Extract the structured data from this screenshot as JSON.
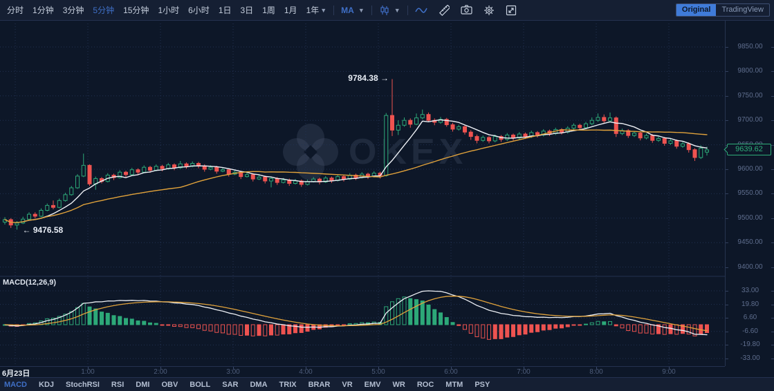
{
  "toolbar": {
    "timeframes": [
      "分时",
      "1分钟",
      "3分钟",
      "5分钟",
      "15分钟",
      "1小时",
      "6小时",
      "1日",
      "3日",
      "1周",
      "1月",
      "1年"
    ],
    "selected_timeframe": "5分钟",
    "ma_label": "MA",
    "icons": [
      "candlestick-icon",
      "line-chart-icon",
      "measure-icon",
      "camera-icon",
      "settings-icon",
      "fullscreen-icon"
    ],
    "view_toggle": {
      "options": [
        "Original",
        "TradingView"
      ],
      "selected": "Original"
    }
  },
  "chart_data": {
    "type": "candlestick",
    "interval": "5分钟",
    "watermark": "OKEX",
    "last_price": "9639.62",
    "annotations": {
      "high_label": "9784.38 →",
      "low_label": "← 9476.58",
      "high_value": 9784.38,
      "low_value": 9476.58
    },
    "price_axis_ticks": [
      "9850.00",
      "9800.00",
      "9750.00",
      "9700.00",
      "9650.00",
      "9600.00",
      "9550.00",
      "9500.00",
      "9450.00",
      "9400.00"
    ],
    "macd": {
      "label": "MACD(12,26,9)",
      "params": [
        12,
        26,
        9
      ],
      "axis_ticks": [
        "33.00",
        "19.80",
        "6.60",
        "-6.60",
        "-19.80",
        "-33.00"
      ]
    },
    "time_axis": {
      "date_label": "6月23日",
      "hour_ticks": [
        "1:00",
        "2:00",
        "3:00",
        "4:00",
        "5:00",
        "6:00",
        "7:00",
        "8:00",
        "9:00"
      ]
    },
    "candles": [
      [
        9492,
        9502,
        9487,
        9497
      ],
      [
        9497,
        9500,
        9480,
        9486
      ],
      [
        9486,
        9494,
        9476.58,
        9490
      ],
      [
        9490,
        9503,
        9488,
        9498
      ],
      [
        9498,
        9512,
        9496,
        9508
      ],
      [
        9508,
        9512,
        9499,
        9504
      ],
      [
        9504,
        9520,
        9502,
        9516
      ],
      [
        9516,
        9530,
        9514,
        9526
      ],
      [
        9526,
        9536,
        9518,
        9522
      ],
      [
        9522,
        9540,
        9520,
        9536
      ],
      [
        9536,
        9552,
        9534,
        9548
      ],
      [
        9548,
        9566,
        9546,
        9562
      ],
      [
        9562,
        9590,
        9560,
        9586
      ],
      [
        9586,
        9632,
        9584,
        9608
      ],
      [
        9608,
        9610,
        9566,
        9570
      ],
      [
        9570,
        9585,
        9558,
        9581
      ],
      [
        9581,
        9584,
        9571,
        9575
      ],
      [
        9575,
        9592,
        9573,
        9588
      ],
      [
        9588,
        9591,
        9578,
        9583
      ],
      [
        9583,
        9598,
        9581,
        9594
      ],
      [
        9594,
        9597,
        9584,
        9589
      ],
      [
        9589,
        9603,
        9587,
        9599
      ],
      [
        9599,
        9602,
        9589,
        9594
      ],
      [
        9594,
        9608,
        9592,
        9604
      ],
      [
        9604,
        9607,
        9593,
        9598
      ],
      [
        9598,
        9610,
        9596,
        9606
      ],
      [
        9606,
        9609,
        9596,
        9601
      ],
      [
        9601,
        9613,
        9599,
        9609
      ],
      [
        9609,
        9612,
        9598,
        9603
      ],
      [
        9603,
        9617,
        9601,
        9611
      ],
      [
        9611,
        9614,
        9601,
        9606
      ],
      [
        9606,
        9616,
        9604,
        9612
      ],
      [
        9612,
        9615,
        9602,
        9607
      ],
      [
        9607,
        9610,
        9595,
        9600
      ],
      [
        9600,
        9608,
        9598,
        9604
      ],
      [
        9604,
        9607,
        9591,
        9596
      ],
      [
        9596,
        9603,
        9594,
        9599
      ],
      [
        9599,
        9602,
        9585,
        9590
      ],
      [
        9590,
        9598,
        9588,
        9594
      ],
      [
        9594,
        9597,
        9580,
        9585
      ],
      [
        9585,
        9593,
        9583,
        9589
      ],
      [
        9589,
        9592,
        9575,
        9580
      ],
      [
        9580,
        9588,
        9578,
        9584
      ],
      [
        9584,
        9587,
        9571,
        9576
      ],
      [
        9576,
        9585,
        9563,
        9581
      ],
      [
        9581,
        9584,
        9568,
        9573
      ],
      [
        9573,
        9582,
        9571,
        9578
      ],
      [
        9578,
        9581,
        9566,
        9571
      ],
      [
        9571,
        9580,
        9569,
        9576
      ],
      [
        9576,
        9579,
        9564,
        9569
      ],
      [
        9569,
        9579,
        9567,
        9575
      ],
      [
        9575,
        9584,
        9573,
        9580
      ],
      [
        9580,
        9583,
        9569,
        9574
      ],
      [
        9574,
        9586,
        9572,
        9582
      ],
      [
        9582,
        9585,
        9572,
        9577
      ],
      [
        9577,
        9589,
        9575,
        9585
      ],
      [
        9585,
        9588,
        9575,
        9580
      ],
      [
        9580,
        9592,
        9578,
        9588
      ],
      [
        9588,
        9591,
        9578,
        9583
      ],
      [
        9583,
        9594,
        9581,
        9590
      ],
      [
        9590,
        9593,
        9580,
        9585
      ],
      [
        9585,
        9596,
        9583,
        9592
      ],
      [
        9592,
        9595,
        9581,
        9587
      ],
      [
        9587,
        9715,
        9585,
        9710
      ],
      [
        9710,
        9784.38,
        9668,
        9680
      ],
      [
        9680,
        9700,
        9670,
        9690
      ],
      [
        9690,
        9706,
        9687,
        9700
      ],
      [
        9700,
        9704,
        9685,
        9692
      ],
      [
        9692,
        9714,
        9690,
        9705
      ],
      [
        9705,
        9722,
        9702,
        9712
      ],
      [
        9712,
        9716,
        9696,
        9700
      ],
      [
        9700,
        9704,
        9690,
        9696
      ],
      [
        9696,
        9707,
        9693,
        9702
      ],
      [
        9702,
        9705,
        9687,
        9691
      ],
      [
        9691,
        9695,
        9677,
        9682
      ],
      [
        9682,
        9691,
        9679,
        9687
      ],
      [
        9687,
        9690,
        9671,
        9676
      ],
      [
        9676,
        9680,
        9660,
        9667
      ],
      [
        9667,
        9671,
        9653,
        9659
      ],
      [
        9659,
        9669,
        9656,
        9665
      ],
      [
        9665,
        9668,
        9653,
        9658
      ],
      [
        9658,
        9671,
        9655,
        9667
      ],
      [
        9667,
        9670,
        9656,
        9661
      ],
      [
        9661,
        9674,
        9658,
        9670
      ],
      [
        9670,
        9673,
        9659,
        9664
      ],
      [
        9664,
        9676,
        9661,
        9672
      ],
      [
        9672,
        9675,
        9662,
        9667
      ],
      [
        9667,
        9679,
        9664,
        9675
      ],
      [
        9675,
        9678,
        9665,
        9670
      ],
      [
        9670,
        9682,
        9667,
        9678
      ],
      [
        9678,
        9681,
        9668,
        9673
      ],
      [
        9673,
        9685,
        9670,
        9681
      ],
      [
        9681,
        9684,
        9671,
        9676
      ],
      [
        9676,
        9688,
        9673,
        9684
      ],
      [
        9684,
        9694,
        9681,
        9690
      ],
      [
        9690,
        9693,
        9680,
        9685
      ],
      [
        9685,
        9697,
        9682,
        9693
      ],
      [
        9693,
        9706,
        9690,
        9700
      ],
      [
        9700,
        9714,
        9697,
        9706
      ],
      [
        9706,
        9712,
        9694,
        9699
      ],
      [
        9699,
        9716,
        9696,
        9705
      ],
      [
        9705,
        9708,
        9666,
        9673
      ],
      [
        9673,
        9683,
        9670,
        9679
      ],
      [
        9679,
        9682,
        9664,
        9669
      ],
      [
        9669,
        9678,
        9666,
        9674
      ],
      [
        9674,
        9677,
        9659,
        9664
      ],
      [
        9664,
        9673,
        9661,
        9669
      ],
      [
        9669,
        9672,
        9654,
        9659
      ],
      [
        9659,
        9667,
        9656,
        9663
      ],
      [
        9663,
        9666,
        9648,
        9653
      ],
      [
        9653,
        9662,
        9650,
        9658
      ],
      [
        9658,
        9661,
        9642,
        9647
      ],
      [
        9647,
        9656,
        9644,
        9652
      ],
      [
        9652,
        9655,
        9634,
        9640
      ],
      [
        9640,
        9643,
        9617,
        9624
      ],
      [
        9624,
        9649,
        9621,
        9643
      ],
      [
        9635,
        9646,
        9628,
        9639.62
      ]
    ]
  },
  "indicator_tabs": {
    "items": [
      "MACD",
      "KDJ",
      "StochRSI",
      "RSI",
      "DMI",
      "OBV",
      "BOLL",
      "SAR",
      "DMA",
      "TRIX",
      "BRAR",
      "VR",
      "EMV",
      "WR",
      "ROC",
      "MTM",
      "PSY"
    ],
    "selected": "MACD"
  },
  "colors": {
    "up_green": "#2da878",
    "down_red": "#ee5350",
    "ma_fast_white": "#eef1f6",
    "ma_slow_orange": "#e2a33b",
    "accent_blue": "#3f6fc6",
    "price_tag_green": "#2fae79",
    "background": "#0d1728",
    "bar_background": "#151f33"
  }
}
